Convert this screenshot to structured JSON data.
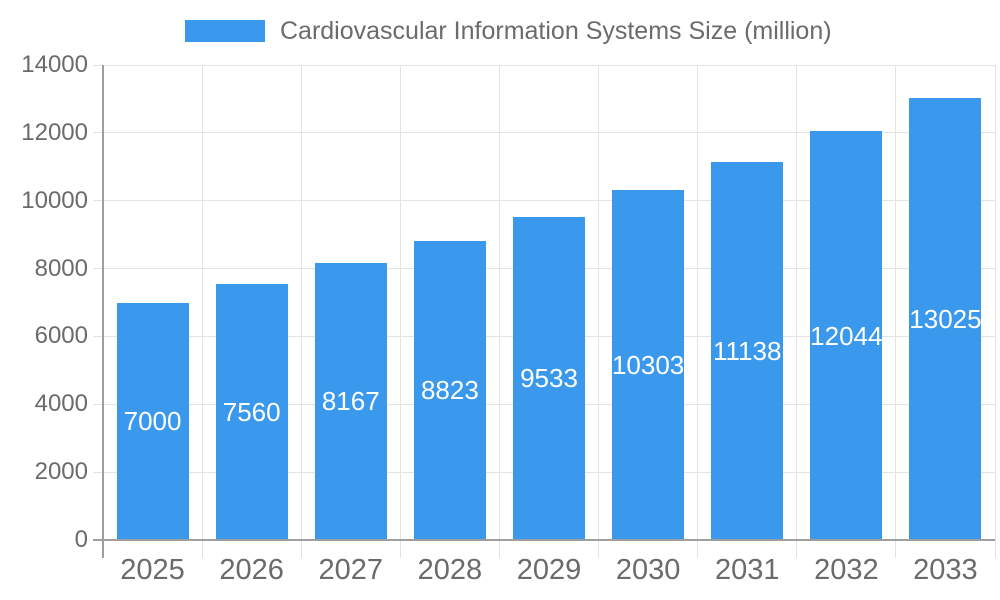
{
  "legend": {
    "label": "Cardiovascular Information Systems Size (million)",
    "swatch_color": "#3a99ec"
  },
  "chart_data": {
    "type": "bar",
    "title": "Cardiovascular Information Systems Size (million)",
    "categories": [
      "2025",
      "2026",
      "2027",
      "2028",
      "2029",
      "2030",
      "2031",
      "2032",
      "2033"
    ],
    "values": [
      7000,
      7560,
      8167,
      8823,
      9533,
      10303,
      11138,
      12044,
      13025
    ],
    "xlabel": "",
    "ylabel": "",
    "ylim": [
      0,
      14000
    ],
    "yticks": [
      0,
      2000,
      4000,
      6000,
      8000,
      10000,
      12000,
      14000
    ],
    "grid": true,
    "legend_position": "top-center",
    "bar_color": "#3a99ec",
    "value_label_color": "#ffffff",
    "axis_color": "#9e9e9e",
    "grid_color": "#e3e3e3",
    "label_color": "#6b6b6b",
    "background": "#ffffff"
  }
}
